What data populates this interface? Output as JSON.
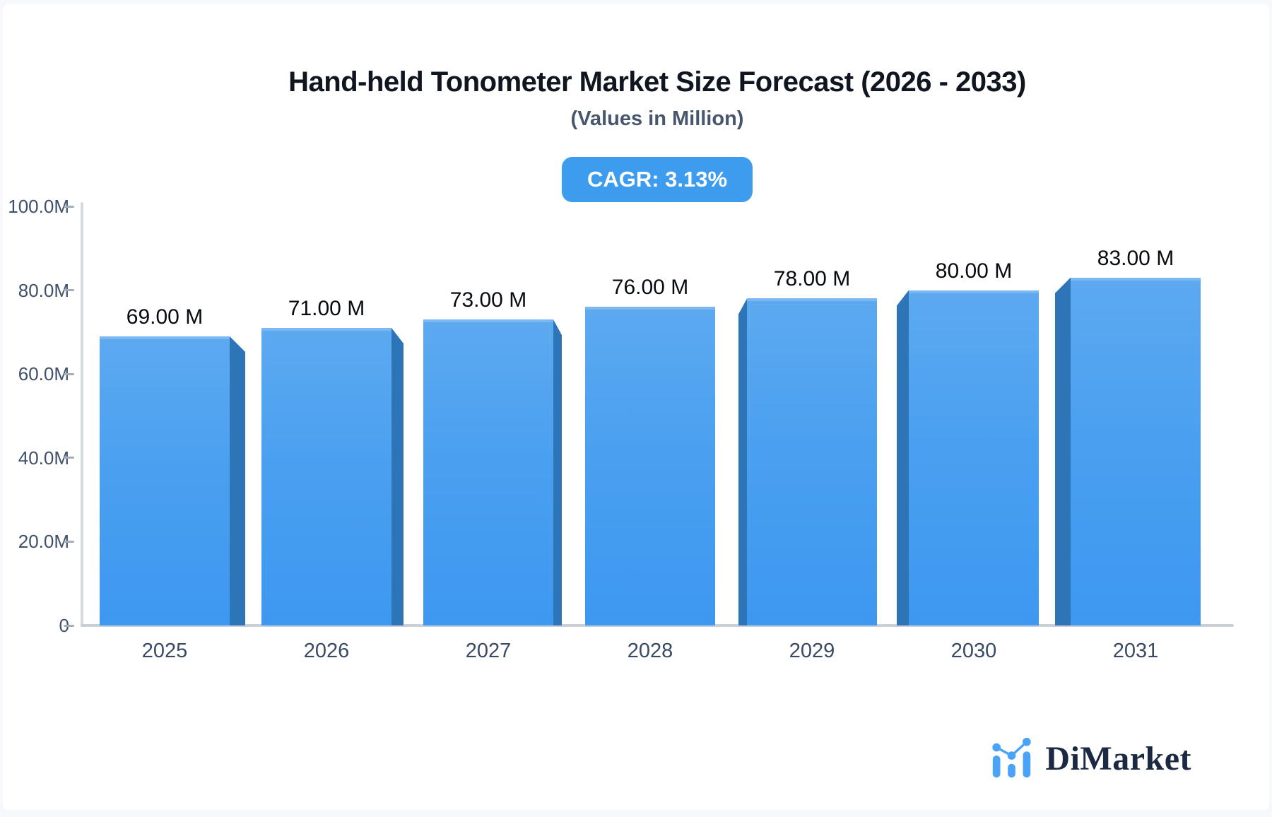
{
  "header": {
    "title": "Hand-held Tonometer Market Size Forecast (2026 - 2033)",
    "subtitle": "(Values in Million)",
    "cagr_label": "CAGR: 3.13%"
  },
  "chart_data": {
    "type": "bar",
    "title": "Hand-held Tonometer Market Size Forecast (2026 - 2033)",
    "subtitle": "(Values in Million)",
    "cagr": "3.13%",
    "categories": [
      "2025",
      "2026",
      "2027",
      "2028",
      "2029",
      "2030",
      "2031"
    ],
    "values": [
      69,
      71,
      73,
      76,
      78,
      80,
      83
    ],
    "value_labels": [
      "69.00 M",
      "71.00 M",
      "73.00 M",
      "76.00 M",
      "78.00 M",
      "80.00 M",
      "83.00 M"
    ],
    "xlabel": "",
    "ylabel": "",
    "ylim": [
      0,
      100
    ],
    "yticks": [
      {
        "value": 100,
        "label": "100.0M"
      },
      {
        "value": 80,
        "label": "80.0M"
      },
      {
        "value": 60,
        "label": "60.0M"
      },
      {
        "value": 40,
        "label": "40.0M"
      },
      {
        "value": 20,
        "label": "20.0M"
      },
      {
        "value": 0,
        "label": "0"
      }
    ],
    "grid": false,
    "legend": false,
    "bar_style": "3d",
    "bar_color": "#459EF0",
    "bar_side_color": "#2E75B7"
  },
  "branding": {
    "logo_text": "DiMarket"
  },
  "colors": {
    "accent": "#3D9CEE",
    "page_background": "#F7F8FB",
    "card_background": "#FFFFFF",
    "title_text": "#10161F",
    "subtitle_text": "#46566C",
    "axis_text": "#3E4E68",
    "value_text": "#070B11",
    "axis_line": "#D2D6DD",
    "logo_text_color": "#1B2A42",
    "logo_icon_color": "#4BA3F7"
  }
}
